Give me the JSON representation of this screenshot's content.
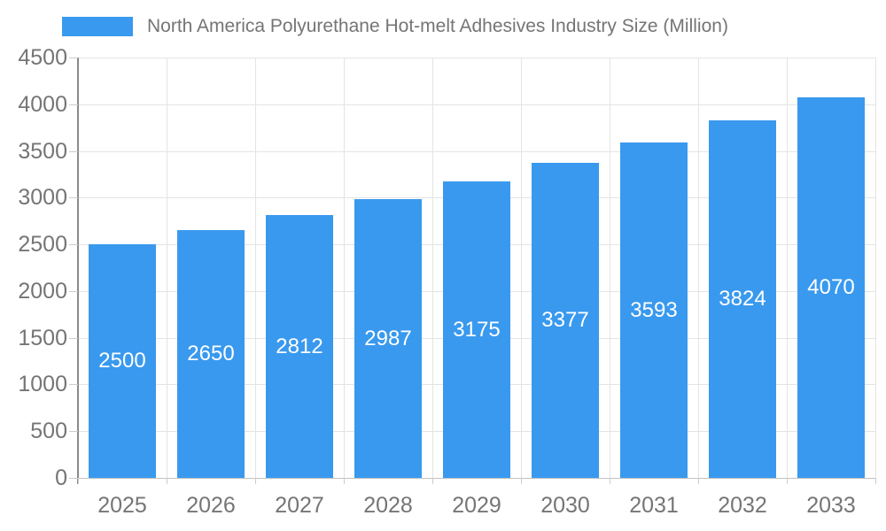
{
  "legend": {
    "swatch_color": "#3999EE"
  },
  "chart_data": {
    "type": "bar",
    "title": "North America Polyurethane Hot-melt Adhesives Industry Size (Million)",
    "categories": [
      "2025",
      "2026",
      "2027",
      "2028",
      "2029",
      "2030",
      "2031",
      "2032",
      "2033"
    ],
    "values": [
      2500,
      2650,
      2812,
      2987,
      3175,
      3377,
      3593,
      3824,
      4070
    ],
    "xlabel": "",
    "ylabel": "",
    "ylim": [
      0,
      4500
    ],
    "ytick_step": 500,
    "yticks": [
      0,
      500,
      1000,
      1500,
      2000,
      2500,
      3000,
      3500,
      4000,
      4500
    ],
    "grid": true,
    "legend_position": "top-left",
    "bar_color": "#3999EE",
    "value_label_color": "#FFFFFF",
    "axis_text_color": "#757575",
    "gridline_color": "#E4E4E4",
    "axis_line_color": "#8A8A8A"
  }
}
